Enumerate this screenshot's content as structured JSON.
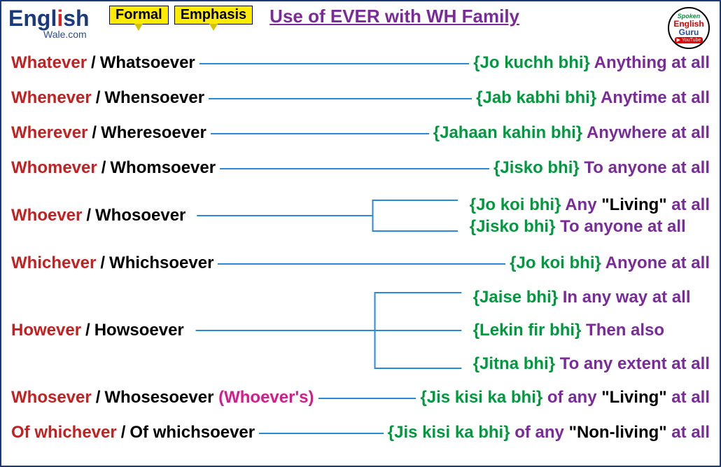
{
  "colors": {
    "logo_blue": "#1a3a7a",
    "logo_red": "#d22",
    "title_purple": "#7a2a9a",
    "formal_red": "#c42020",
    "emphasis_black": "#000000",
    "line_blue": "#2a8ad8",
    "hindi_green": "#009a3e",
    "meaning_purple": "#7a2a9a",
    "magenta": "#d81b8c",
    "black": "#000000",
    "yellow_bg": "#ffeb00"
  },
  "header": {
    "logo_part1": "Engl",
    "logo_part2": "i",
    "logo_part3": "sh",
    "logo_sub": "Wale.com",
    "tag_formal": "Formal",
    "tag_emphasis": "Emphasis",
    "title": "Use of EVER with WH Family"
  },
  "badge": {
    "l1": "Spoken",
    "l2": "English",
    "l3": "Guru",
    "yt": "▶ YouTube"
  },
  "rows": [
    {
      "formal": "Whatever",
      "emphasis": "Whatsoever",
      "note": "",
      "meanings": [
        {
          "hindi": "{Jo kuchh bhi}",
          "en": " Anything at all"
        }
      ]
    },
    {
      "formal": "Whenever",
      "emphasis": "Whensoever",
      "note": "",
      "meanings": [
        {
          "hindi": "{Jab kabhi bhi}",
          "en": " Anytime at all"
        }
      ]
    },
    {
      "formal": "Wherever",
      "emphasis": "Wheresoever",
      "note": "",
      "meanings": [
        {
          "hindi": "{Jahaan kahin bhi}",
          "en": " Anywhere at all"
        }
      ]
    },
    {
      "formal": "Whomever",
      "emphasis": "Whomsoever",
      "note": "",
      "meanings": [
        {
          "hindi": "{Jisko bhi}",
          "en": " To anyone at all"
        }
      ]
    },
    {
      "formal": "Whoever",
      "emphasis": "Whosoever",
      "note": "",
      "meanings": [
        {
          "hindi": "{Jo koi bhi}",
          "en_pre": " Any ",
          "quote": "\"Living\"",
          "en_post": " at all"
        },
        {
          "hindi": "{Jisko bhi}",
          "en": " To anyone at all"
        }
      ]
    },
    {
      "formal": "Whichever",
      "emphasis": "Whichsoever",
      "note": "",
      "meanings": [
        {
          "hindi": "{Jo koi bhi}",
          "en": " Anyone at all"
        }
      ]
    },
    {
      "formal": "However",
      "emphasis": "Howsoever",
      "note": "",
      "meanings": [
        {
          "hindi": "{Jaise bhi}",
          "en": " In any way at all"
        },
        {
          "hindi": "{Lekin fir bhi}",
          "en": " Then also"
        },
        {
          "hindi": "{Jitna bhi}",
          "en": " To any extent at all"
        }
      ]
    },
    {
      "formal": "Whosever",
      "emphasis": "Whosesoever",
      "note": " (Whoever's)",
      "meanings": [
        {
          "hindi": "{Jis kisi ka bhi}",
          "en_pre": " of any ",
          "quote": "\"Living\"",
          "en_post": " at all"
        }
      ]
    },
    {
      "formal": "Of whichever",
      "emphasis": "Of whichsoever",
      "note": "",
      "meanings": [
        {
          "hindi": "{Jis kisi ka bhi}",
          "en_pre": " of any ",
          "quote": "\"Non-living\"",
          "en_post": " at all"
        }
      ]
    }
  ]
}
